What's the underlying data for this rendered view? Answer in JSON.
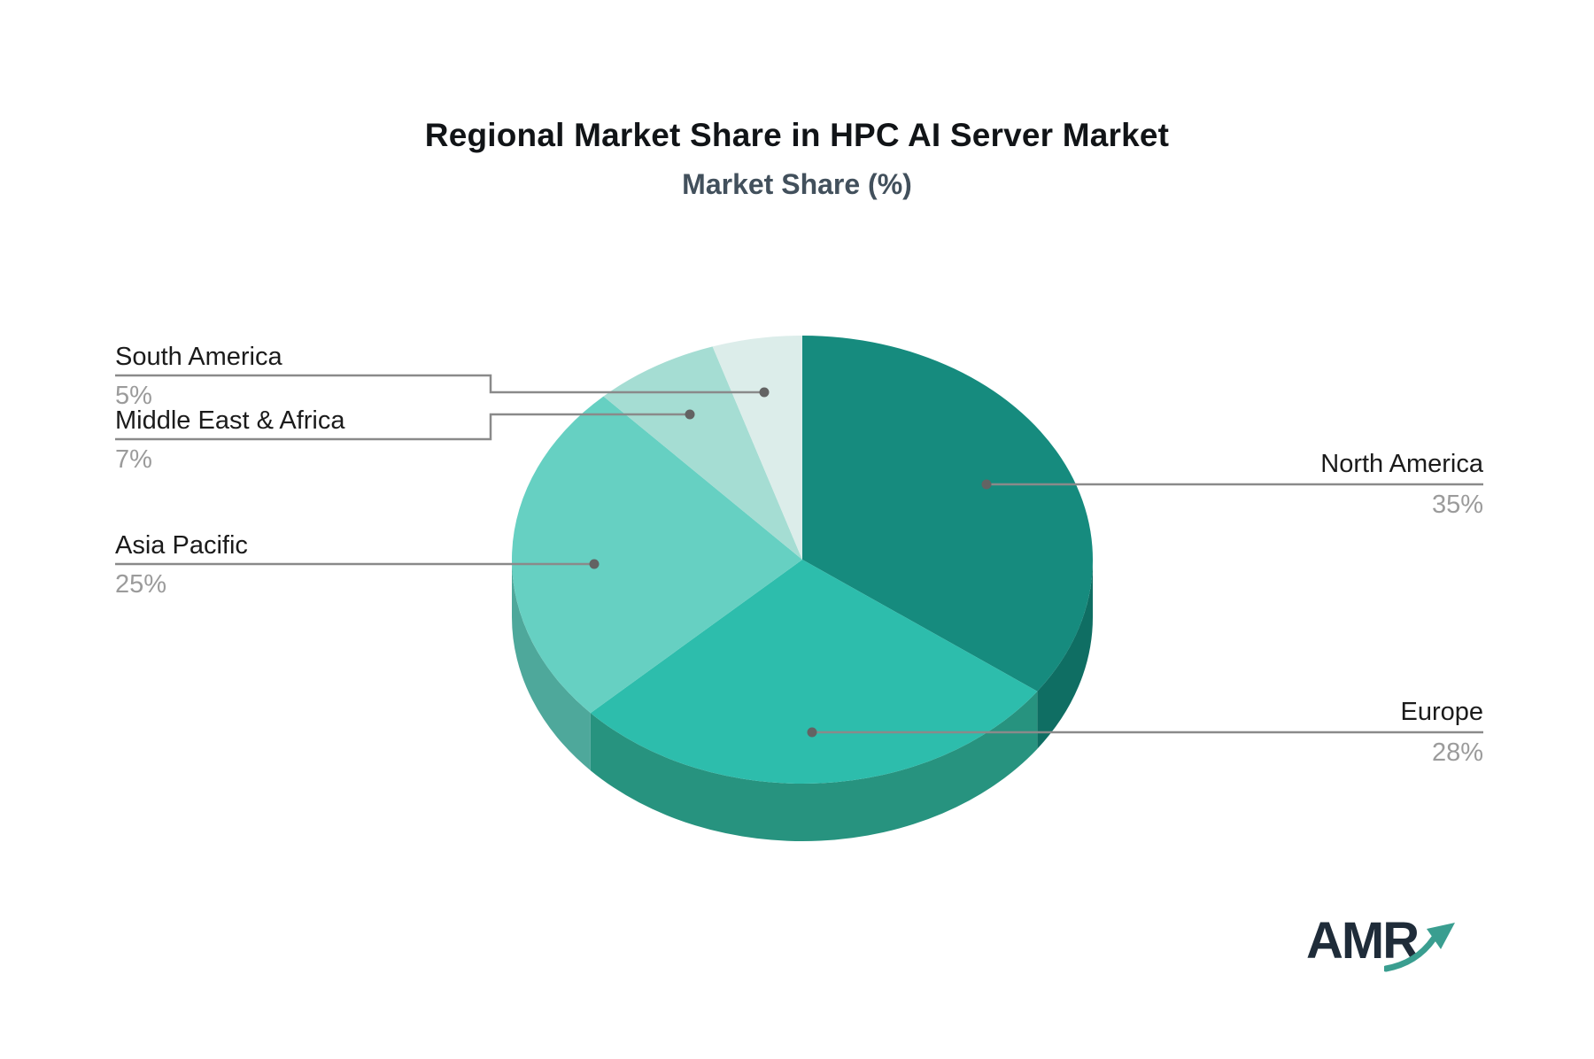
{
  "title": "Regional Market Share in HPC AI Server Market",
  "subtitle": "Market Share (%)",
  "logo": {
    "text": "AMR"
  },
  "colors": {
    "background": "#ffffff",
    "title_text": "#111417",
    "subtitle_text": "#42505c",
    "label_text": "#1b1b1b",
    "percent_text": "#9b9b9b",
    "leader_line": "#8a8a8a",
    "leader_dot": "#636363",
    "logo_text": "#1f2c39",
    "logo_arrow": "#3a9e90"
  },
  "chart_data": {
    "type": "pie",
    "style": "3d",
    "title": "Regional Market Share in HPC AI Server Market",
    "subtitle": "Market Share (%)",
    "unit": "%",
    "start_angle_deg": 0,
    "direction": "clockwise",
    "legend_position": "callout-labels",
    "slices": [
      {
        "label": "North America",
        "value": 35,
        "pct": "35%",
        "color": "#168b7e",
        "side_color": "#0f6e63",
        "label_side": "right"
      },
      {
        "label": "Europe",
        "value": 28,
        "pct": "28%",
        "color": "#2dbdac",
        "side_color": "#27937f",
        "label_side": "right"
      },
      {
        "label": "Asia Pacific",
        "value": 25,
        "pct": "25%",
        "color": "#66d0c2",
        "side_color": "#4ea89b",
        "label_side": "left"
      },
      {
        "label": "Middle East & Africa",
        "value": 7,
        "pct": "7%",
        "color": "#a5ddd3",
        "side_color": "#84b1a9",
        "label_side": "left"
      },
      {
        "label": "South America",
        "value": 5,
        "pct": "5%",
        "color": "#dcedea",
        "side_color": "#b0bebc",
        "label_side": "left"
      }
    ]
  }
}
